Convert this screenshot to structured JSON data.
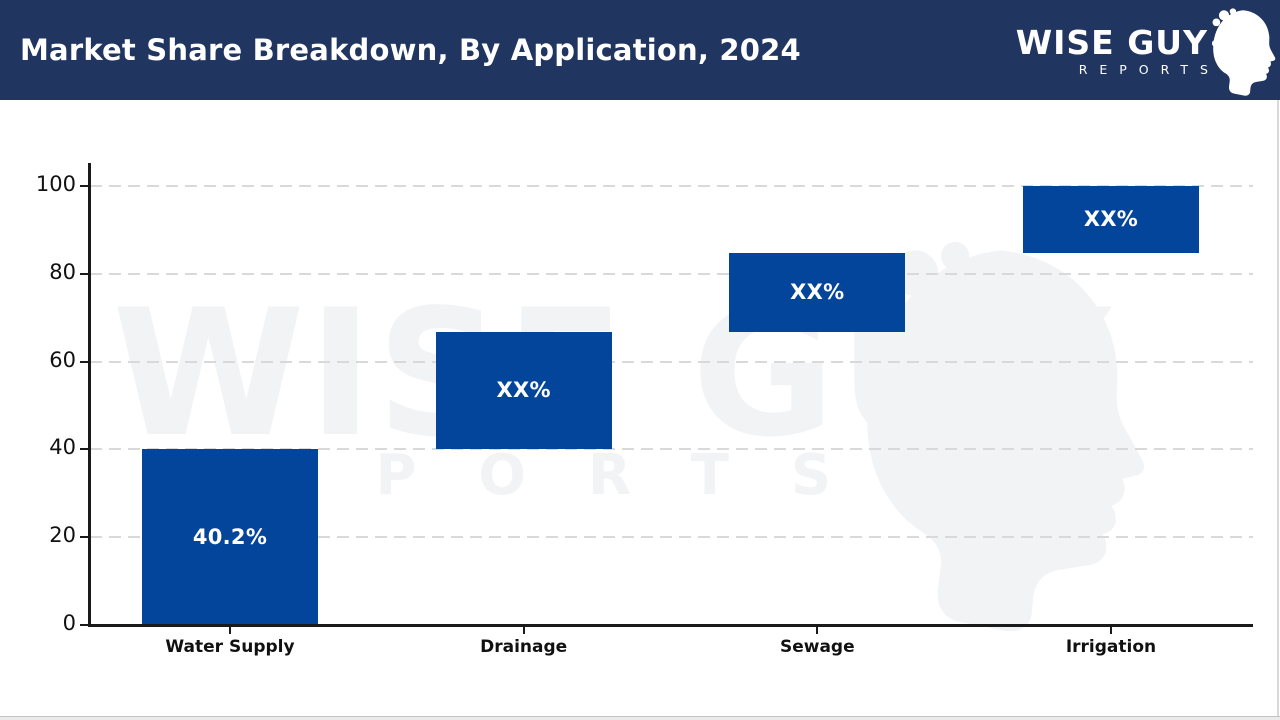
{
  "header": {
    "title": "Market Share Breakdown, By Application, 2024",
    "bg_color": "#213561"
  },
  "brand": {
    "line1": "WISE GUY",
    "line2": "REPORTS"
  },
  "colors": {
    "header_bg": "#213561",
    "bar": "#04459C",
    "grid": "#D9D9D9",
    "axis": "#1A1A1A",
    "bar_label": "#FFFFFF",
    "tick_label": "#111111",
    "watermark": "#F2F3F5"
  },
  "chart_data": {
    "type": "bar",
    "subtype": "floating-waterfall",
    "title": "Market Share Breakdown, By Application, 2024",
    "categories": [
      "Water Supply",
      "Drainage",
      "Sewage",
      "Irrigation"
    ],
    "segments": [
      {
        "category": "Water Supply",
        "start": 0,
        "end": 40.2,
        "label": "40.2%"
      },
      {
        "category": "Drainage",
        "start": 40.2,
        "end": 66.8,
        "label": "XX%"
      },
      {
        "category": "Sewage",
        "start": 66.8,
        "end": 84.8,
        "label": "XX%"
      },
      {
        "category": "Irrigation",
        "start": 84.8,
        "end": 100,
        "label": "XX%"
      }
    ],
    "y_ticks": [
      0,
      20,
      40,
      60,
      80,
      100
    ],
    "ylim": [
      0,
      105
    ],
    "xlabel": "",
    "ylabel": "",
    "grid": "horizontal-dashed",
    "legend": "none",
    "bar_color": "#04459C"
  }
}
